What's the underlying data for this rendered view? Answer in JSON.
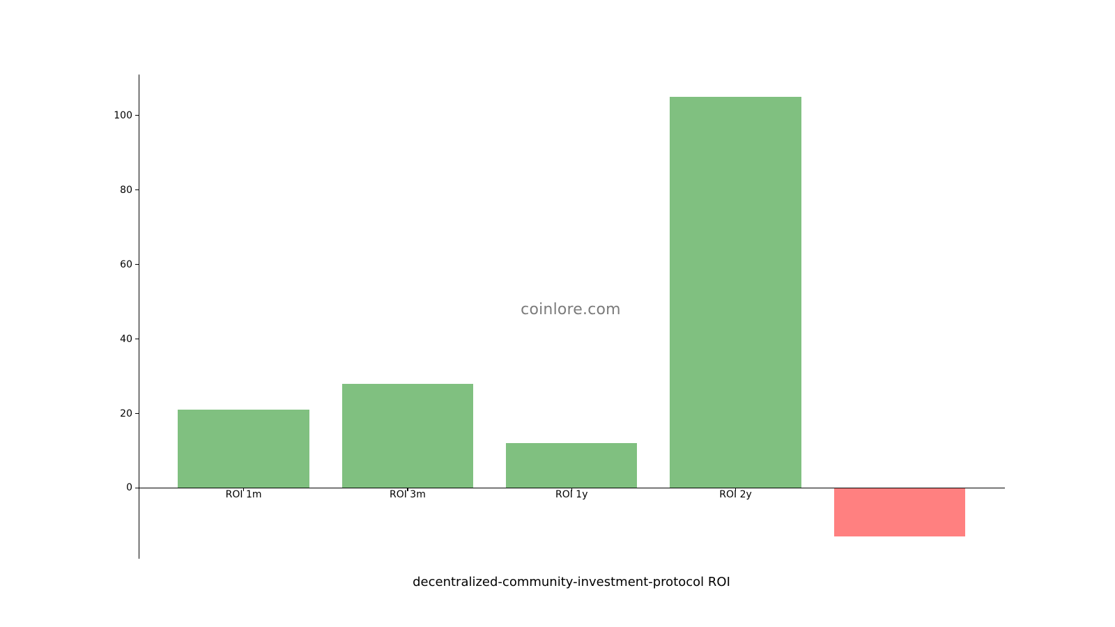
{
  "watermark": {
    "text": "coinlore.com",
    "color": "#7b7b7b"
  },
  "chart_data": {
    "type": "bar",
    "title": "decentralized-community-investment-protocol ROI",
    "title_position": "bottom",
    "xlabel": "",
    "ylabel": "",
    "categories": [
      "ROI 1m",
      "ROI 3m",
      "ROI 1y",
      "ROI 2y",
      ""
    ],
    "values": [
      21,
      28,
      12,
      105,
      -13
    ],
    "yticks": [
      0,
      20,
      40,
      60,
      80,
      100
    ],
    "ylim": [
      -19,
      111
    ],
    "grid": false,
    "legend_position": "none",
    "bar_colors": {
      "positive": "#80c080",
      "negative": "#ff8080"
    },
    "axis_color": "#000000"
  }
}
